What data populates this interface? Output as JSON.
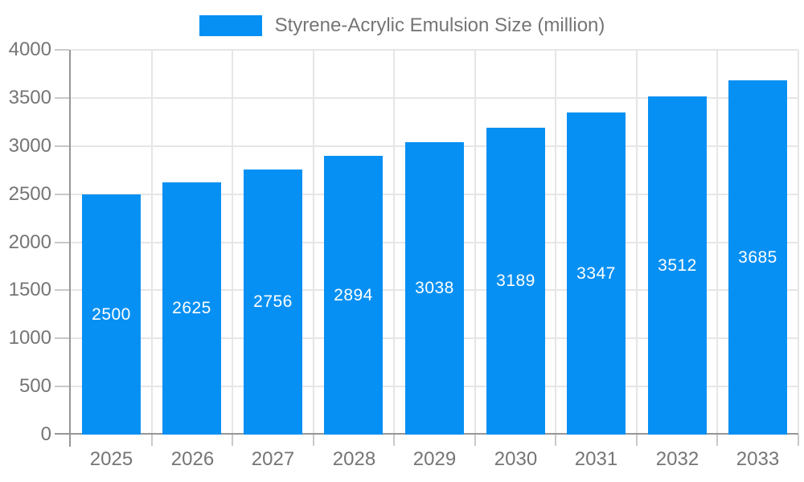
{
  "chart_data": {
    "type": "bar",
    "title": "Styrene-Acrylic Emulsion Size (million)",
    "xlabel": "",
    "ylabel": "",
    "categories": [
      "2025",
      "2026",
      "2027",
      "2028",
      "2029",
      "2030",
      "2031",
      "2032",
      "2033"
    ],
    "values": [
      2500,
      2625,
      2756,
      2894,
      3038,
      3189,
      3347,
      3512,
      3685
    ],
    "series": [
      {
        "name": "Styrene-Acrylic Emulsion Size (million)",
        "values": [
          2500,
          2625,
          2756,
          2894,
          3038,
          3189,
          3347,
          3512,
          3685
        ]
      }
    ],
    "ylim": [
      0,
      4000
    ],
    "ytick_step": 500,
    "ytick_labels": [
      "0",
      "500",
      "1000",
      "1500",
      "2000",
      "2500",
      "3000",
      "3500",
      "4000"
    ],
    "grid": true,
    "legend_position": "top",
    "bar_color": "#0790f3",
    "bar_label_color": "#ffffff",
    "axis_color": "#969696",
    "grid_color": "#e6e6e6",
    "tick_color": "#c9c9c9",
    "text_color": "#757575",
    "background_color": "#ffffff"
  }
}
